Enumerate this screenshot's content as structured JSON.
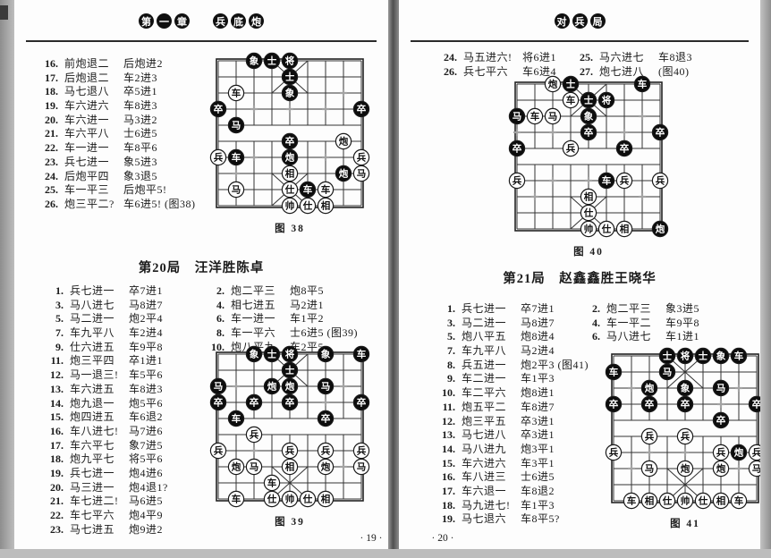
{
  "left_page": {
    "header_group1": [
      "第",
      "一",
      "章"
    ],
    "header_group2": [
      "兵",
      "底",
      "炮"
    ],
    "top_moves": [
      {
        "n": "16.",
        "r": "前炮退二",
        "b": "后炮进2"
      },
      {
        "n": "17.",
        "r": "后炮退二",
        "b": "车2进3"
      },
      {
        "n": "18.",
        "r": "马七退八",
        "b": "卒5进1"
      },
      {
        "n": "19.",
        "r": "车六进六",
        "b": "车8进3"
      },
      {
        "n": "20.",
        "r": "车六进一",
        "b": "马3进2"
      },
      {
        "n": "21.",
        "r": "车六平八",
        "b": "士6进5"
      },
      {
        "n": "22.",
        "r": "车一进一",
        "b": "车8平6"
      },
      {
        "n": "23.",
        "r": "兵七进一",
        "b": "象5进3"
      },
      {
        "n": "24.",
        "r": "后炮平四",
        "b": "象3退5"
      },
      {
        "n": "25.",
        "r": "车一平三",
        "b": "后炮平5!"
      },
      {
        "n": "26.",
        "r": "炮三平二?",
        "b": "车6进5! (图38)"
      }
    ],
    "fig38": {
      "caption": "图 38",
      "pieces": [
        {
          "c": 3,
          "r": 1,
          "t": "象",
          "s": "b"
        },
        {
          "c": 4,
          "r": 1,
          "t": "士",
          "s": "b"
        },
        {
          "c": 5,
          "r": 1,
          "t": "将",
          "s": "b"
        },
        {
          "c": 5,
          "r": 2,
          "t": "士",
          "s": "b"
        },
        {
          "c": 2,
          "r": 3,
          "t": "车",
          "s": "r"
        },
        {
          "c": 5,
          "r": 3,
          "t": "象",
          "s": "b"
        },
        {
          "c": 1,
          "r": 4,
          "t": "卒",
          "s": "b"
        },
        {
          "c": 9,
          "r": 4,
          "t": "卒",
          "s": "b"
        },
        {
          "c": 2,
          "r": 5,
          "t": "马",
          "s": "b"
        },
        {
          "c": 5,
          "r": 6,
          "t": "卒",
          "s": "b"
        },
        {
          "c": 8,
          "r": 6,
          "t": "炮",
          "s": "r"
        },
        {
          "c": 1,
          "r": 7,
          "t": "兵",
          "s": "r"
        },
        {
          "c": 2,
          "r": 7,
          "t": "车",
          "s": "b"
        },
        {
          "c": 5,
          "r": 7,
          "t": "炮",
          "s": "b"
        },
        {
          "c": 9,
          "r": 7,
          "t": "兵",
          "s": "r"
        },
        {
          "c": 5,
          "r": 8,
          "t": "相",
          "s": "r"
        },
        {
          "c": 8,
          "r": 8,
          "t": "炮",
          "s": "b"
        },
        {
          "c": 9,
          "r": 8,
          "t": "马",
          "s": "r"
        },
        {
          "c": 2,
          "r": 9,
          "t": "马",
          "s": "r"
        },
        {
          "c": 5,
          "r": 9,
          "t": "仕",
          "s": "r"
        },
        {
          "c": 6,
          "r": 9,
          "t": "车",
          "s": "b"
        },
        {
          "c": 7,
          "r": 9,
          "t": "车",
          "s": "r"
        },
        {
          "c": 5,
          "r": 10,
          "t": "帅",
          "s": "r"
        },
        {
          "c": 6,
          "r": 10,
          "t": "仕",
          "s": "r"
        },
        {
          "c": 7,
          "r": 10,
          "t": "相",
          "s": "r"
        }
      ]
    },
    "game_title": "第20局　汪洋胜陈卓",
    "game_col1": [
      {
        "n": "1.",
        "r": "兵七进一",
        "b": "卒7进1"
      },
      {
        "n": "3.",
        "r": "马八进七",
        "b": "马8进7"
      },
      {
        "n": "5.",
        "r": "马二进一",
        "b": "炮2平4"
      },
      {
        "n": "7.",
        "r": "车九平八",
        "b": "车2进4"
      },
      {
        "n": "9.",
        "r": "仕六进五",
        "b": "车9平8"
      },
      {
        "n": "11.",
        "r": "炮三平四",
        "b": "卒1进1"
      },
      {
        "n": "12.",
        "r": "马一退三!",
        "b": "车5平6"
      },
      {
        "n": "13.",
        "r": "车六进五",
        "b": "车8进3"
      },
      {
        "n": "14.",
        "r": "炮九退一",
        "b": "炮5平6"
      },
      {
        "n": "15.",
        "r": "炮四进五",
        "b": "车6退2"
      },
      {
        "n": "16.",
        "r": "车八进七!",
        "b": "马7进6"
      },
      {
        "n": "17.",
        "r": "车六平七",
        "b": "象7进5"
      },
      {
        "n": "18.",
        "r": "炮九平七",
        "b": "将5平6"
      },
      {
        "n": "19.",
        "r": "兵七进一",
        "b": "炮4进6"
      },
      {
        "n": "20.",
        "r": "马三进一",
        "b": "炮4退1?"
      },
      {
        "n": "21.",
        "r": "车七进二!",
        "b": "马6进5"
      },
      {
        "n": "22.",
        "r": "车七平六",
        "b": "炮4平9"
      },
      {
        "n": "23.",
        "r": "马七进五",
        "b": "炮9进2"
      }
    ],
    "game_col2": [
      {
        "n": "2.",
        "r": "炮二平三",
        "b": "炮8平5"
      },
      {
        "n": "4.",
        "r": "相七进五",
        "b": "马2进1"
      },
      {
        "n": "6.",
        "r": "车一进一",
        "b": "车1平2"
      },
      {
        "n": "8.",
        "r": "车一平六",
        "b": "士6进5 (图39)"
      },
      {
        "n": "10.",
        "r": "炮八平九",
        "b": "车2平5"
      }
    ],
    "fig39": {
      "caption": "图 39",
      "pieces": [
        {
          "c": 3,
          "r": 1,
          "t": "象",
          "s": "b"
        },
        {
          "c": 4,
          "r": 1,
          "t": "士",
          "s": "b"
        },
        {
          "c": 5,
          "r": 1,
          "t": "将",
          "s": "b"
        },
        {
          "c": 7,
          "r": 1,
          "t": "象",
          "s": "b"
        },
        {
          "c": 9,
          "r": 1,
          "t": "车",
          "s": "b"
        },
        {
          "c": 5,
          "r": 2,
          "t": "士",
          "s": "b"
        },
        {
          "c": 1,
          "r": 3,
          "t": "马",
          "s": "b"
        },
        {
          "c": 4,
          "r": 3,
          "t": "炮",
          "s": "b"
        },
        {
          "c": 5,
          "r": 3,
          "t": "炮",
          "s": "b"
        },
        {
          "c": 7,
          "r": 3,
          "t": "马",
          "s": "b"
        },
        {
          "c": 1,
          "r": 4,
          "t": "卒",
          "s": "b"
        },
        {
          "c": 3,
          "r": 4,
          "t": "卒",
          "s": "b"
        },
        {
          "c": 5,
          "r": 4,
          "t": "卒",
          "s": "b"
        },
        {
          "c": 9,
          "r": 4,
          "t": "卒",
          "s": "b"
        },
        {
          "c": 2,
          "r": 5,
          "t": "车",
          "s": "b"
        },
        {
          "c": 7,
          "r": 5,
          "t": "卒",
          "s": "b"
        },
        {
          "c": 3,
          "r": 6,
          "t": "兵",
          "s": "r"
        },
        {
          "c": 1,
          "r": 7,
          "t": "兵",
          "s": "r"
        },
        {
          "c": 5,
          "r": 7,
          "t": "兵",
          "s": "r"
        },
        {
          "c": 7,
          "r": 7,
          "t": "兵",
          "s": "r"
        },
        {
          "c": 9,
          "r": 7,
          "t": "兵",
          "s": "r"
        },
        {
          "c": 2,
          "r": 8,
          "t": "炮",
          "s": "r"
        },
        {
          "c": 3,
          "r": 8,
          "t": "马",
          "s": "r"
        },
        {
          "c": 5,
          "r": 8,
          "t": "相",
          "s": "r"
        },
        {
          "c": 7,
          "r": 8,
          "t": "炮",
          "s": "r"
        },
        {
          "c": 9,
          "r": 8,
          "t": "马",
          "s": "r"
        },
        {
          "c": 4,
          "r": 9,
          "t": "车",
          "s": "r"
        },
        {
          "c": 2,
          "r": 10,
          "t": "车",
          "s": "r"
        },
        {
          "c": 4,
          "r": 10,
          "t": "仕",
          "s": "r"
        },
        {
          "c": 5,
          "r": 10,
          "t": "帅",
          "s": "r"
        },
        {
          "c": 6,
          "r": 10,
          "t": "仕",
          "s": "r"
        },
        {
          "c": 7,
          "r": 10,
          "t": "相",
          "s": "r"
        }
      ]
    },
    "footer": "· 19 ·"
  },
  "right_page": {
    "header_group1": [
      "对",
      "兵",
      "局"
    ],
    "top_col1": [
      {
        "n": "24.",
        "r": "马五进六!",
        "b": "将6进1"
      },
      {
        "n": "26.",
        "r": "兵七平六",
        "b": "车6进4"
      }
    ],
    "top_col2": [
      {
        "n": "25.",
        "r": "马六进七",
        "b": "车8退3"
      },
      {
        "n": "27.",
        "r": "炮七进八",
        "b": "(图40)"
      }
    ],
    "fig40": {
      "caption": "图 40",
      "pieces": [
        {
          "c": 3,
          "r": 1,
          "t": "炮",
          "s": "r"
        },
        {
          "c": 4,
          "r": 1,
          "t": "士",
          "s": "b"
        },
        {
          "c": 8,
          "r": 1,
          "t": "车",
          "s": "b"
        },
        {
          "c": 4,
          "r": 2,
          "t": "车",
          "s": "r"
        },
        {
          "c": 5,
          "r": 2,
          "t": "士",
          "s": "b"
        },
        {
          "c": 6,
          "r": 2,
          "t": "将",
          "s": "b"
        },
        {
          "c": 1,
          "r": 3,
          "t": "马",
          "s": "b"
        },
        {
          "c": 2,
          "r": 3,
          "t": "车",
          "s": "r"
        },
        {
          "c": 3,
          "r": 3,
          "t": "马",
          "s": "r"
        },
        {
          "c": 5,
          "r": 3,
          "t": "象",
          "s": "b"
        },
        {
          "c": 5,
          "r": 4,
          "t": "卒",
          "s": "b"
        },
        {
          "c": 9,
          "r": 4,
          "t": "卒",
          "s": "b"
        },
        {
          "c": 1,
          "r": 5,
          "t": "卒",
          "s": "b"
        },
        {
          "c": 4,
          "r": 5,
          "t": "兵",
          "s": "r"
        },
        {
          "c": 7,
          "r": 5,
          "t": "卒",
          "s": "b"
        },
        {
          "c": 1,
          "r": 7,
          "t": "兵",
          "s": "r"
        },
        {
          "c": 6,
          "r": 7,
          "t": "车",
          "s": "b"
        },
        {
          "c": 7,
          "r": 7,
          "t": "兵",
          "s": "r"
        },
        {
          "c": 9,
          "r": 7,
          "t": "兵",
          "s": "r"
        },
        {
          "c": 5,
          "r": 8,
          "t": "相",
          "s": "r"
        },
        {
          "c": 5,
          "r": 9,
          "t": "仕",
          "s": "r"
        },
        {
          "c": 5,
          "r": 10,
          "t": "帅",
          "s": "r"
        },
        {
          "c": 6,
          "r": 10,
          "t": "仕",
          "s": "r"
        },
        {
          "c": 7,
          "r": 10,
          "t": "相",
          "s": "r"
        },
        {
          "c": 9,
          "r": 10,
          "t": "炮",
          "s": "b"
        }
      ]
    },
    "game_title": "第21局　赵鑫鑫胜王晓华",
    "game_col1": [
      {
        "n": "1.",
        "r": "兵七进一",
        "b": "卒7进1"
      },
      {
        "n": "3.",
        "r": "马二进一",
        "b": "马8进7"
      },
      {
        "n": "5.",
        "r": "炮八平五",
        "b": "炮8进4"
      },
      {
        "n": "7.",
        "r": "车九平八",
        "b": "马2进4"
      },
      {
        "n": "8.",
        "r": "兵五进一",
        "b": "炮2平3 (图41)"
      },
      {
        "n": "9.",
        "r": "车二进一",
        "b": "车1平3"
      },
      {
        "n": "10.",
        "r": "车二平六",
        "b": "炮8进1"
      },
      {
        "n": "11.",
        "r": "炮五平二",
        "b": "车8进7"
      },
      {
        "n": "12.",
        "r": "炮三平五",
        "b": "卒3进1"
      },
      {
        "n": "13.",
        "r": "马七进八",
        "b": "卒3进1"
      },
      {
        "n": "14.",
        "r": "马八进九",
        "b": "炮3平1"
      },
      {
        "n": "15.",
        "r": "车六进六",
        "b": "车3平1"
      },
      {
        "n": "16.",
        "r": "车八进三",
        "b": "士6进5"
      },
      {
        "n": "17.",
        "r": "车六退一",
        "b": "车8退2"
      },
      {
        "n": "18.",
        "r": "马九进七!",
        "b": "车1平3"
      },
      {
        "n": "19.",
        "r": "马七退六",
        "b": "车8平5?"
      }
    ],
    "game_col2": [
      {
        "n": "2.",
        "r": "炮二平三",
        "b": "象3进5"
      },
      {
        "n": "4.",
        "r": "车一平二",
        "b": "车9平8"
      },
      {
        "n": "6.",
        "r": "马八进七",
        "b": "车1进1"
      }
    ],
    "fig41": {
      "caption": "图 41",
      "pieces": [
        {
          "c": 4,
          "r": 1,
          "t": "士",
          "s": "b"
        },
        {
          "c": 5,
          "r": 1,
          "t": "将",
          "s": "b"
        },
        {
          "c": 6,
          "r": 1,
          "t": "士",
          "s": "b"
        },
        {
          "c": 7,
          "r": 1,
          "t": "象",
          "s": "b"
        },
        {
          "c": 8,
          "r": 1,
          "t": "车",
          "s": "b"
        },
        {
          "c": 1,
          "r": 2,
          "t": "车",
          "s": "b"
        },
        {
          "c": 4,
          "r": 2,
          "t": "马",
          "s": "b"
        },
        {
          "c": 3,
          "r": 3,
          "t": "炮",
          "s": "b"
        },
        {
          "c": 5,
          "r": 3,
          "t": "象",
          "s": "b"
        },
        {
          "c": 7,
          "r": 3,
          "t": "马",
          "s": "b"
        },
        {
          "c": 1,
          "r": 4,
          "t": "卒",
          "s": "b"
        },
        {
          "c": 3,
          "r": 4,
          "t": "卒",
          "s": "b"
        },
        {
          "c": 5,
          "r": 4,
          "t": "卒",
          "s": "b"
        },
        {
          "c": 9,
          "r": 4,
          "t": "卒",
          "s": "b"
        },
        {
          "c": 7,
          "r": 5,
          "t": "卒",
          "s": "b"
        },
        {
          "c": 3,
          "r": 6,
          "t": "兵",
          "s": "r"
        },
        {
          "c": 5,
          "r": 6,
          "t": "兵",
          "s": "r"
        },
        {
          "c": 1,
          "r": 7,
          "t": "兵",
          "s": "r"
        },
        {
          "c": 7,
          "r": 7,
          "t": "兵",
          "s": "r"
        },
        {
          "c": 8,
          "r": 7,
          "t": "炮",
          "s": "b"
        },
        {
          "c": 9,
          "r": 7,
          "t": "兵",
          "s": "r"
        },
        {
          "c": 3,
          "r": 8,
          "t": "马",
          "s": "r"
        },
        {
          "c": 5,
          "r": 8,
          "t": "炮",
          "s": "r"
        },
        {
          "c": 7,
          "r": 8,
          "t": "炮",
          "s": "r"
        },
        {
          "c": 9,
          "r": 8,
          "t": "马",
          "s": "r"
        },
        {
          "c": 2,
          "r": 10,
          "t": "车",
          "s": "r"
        },
        {
          "c": 3,
          "r": 10,
          "t": "相",
          "s": "r"
        },
        {
          "c": 4,
          "r": 10,
          "t": "仕",
          "s": "r"
        },
        {
          "c": 5,
          "r": 10,
          "t": "帅",
          "s": "r"
        },
        {
          "c": 6,
          "r": 10,
          "t": "仕",
          "s": "r"
        },
        {
          "c": 7,
          "r": 10,
          "t": "相",
          "s": "r"
        },
        {
          "c": 8,
          "r": 10,
          "t": "车",
          "s": "r"
        }
      ]
    },
    "footer": "· 20 ·"
  }
}
